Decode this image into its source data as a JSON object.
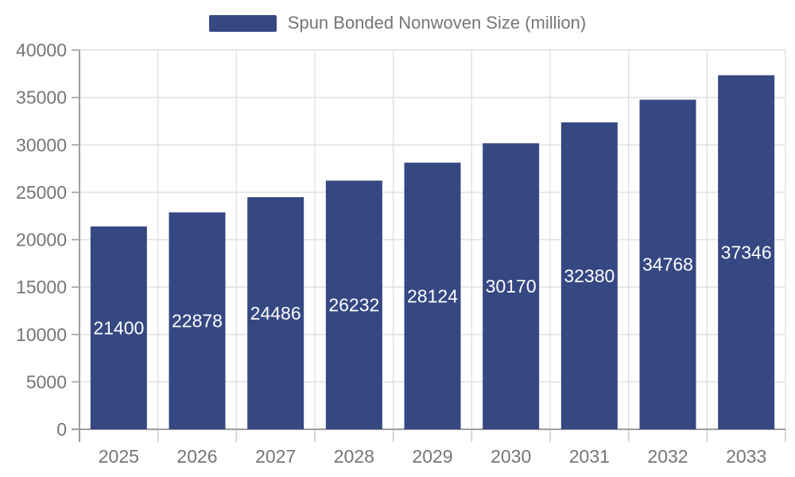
{
  "chart_data": {
    "type": "bar",
    "title": "",
    "series_name": "Spun Bonded Nonwoven Size (million)",
    "categories": [
      "2025",
      "2026",
      "2027",
      "2028",
      "2029",
      "2030",
      "2031",
      "2032",
      "2033"
    ],
    "values": [
      21400,
      22878,
      24486,
      26232,
      28124,
      30170,
      32380,
      34768,
      37346
    ],
    "xlabel": "",
    "ylabel": "",
    "ylim": [
      0,
      40000
    ],
    "yticks": [
      0,
      5000,
      10000,
      15000,
      20000,
      25000,
      30000,
      35000,
      40000
    ],
    "grid": true,
    "legend_position": "top-center",
    "bar_color": "#364882",
    "bar_label_color": "#ffffff",
    "axis_text_color": "#757575",
    "grid_color": "#e0e0e0",
    "axis_line_color": "#9e9e9e",
    "x_tick_color": "#cccccc"
  }
}
